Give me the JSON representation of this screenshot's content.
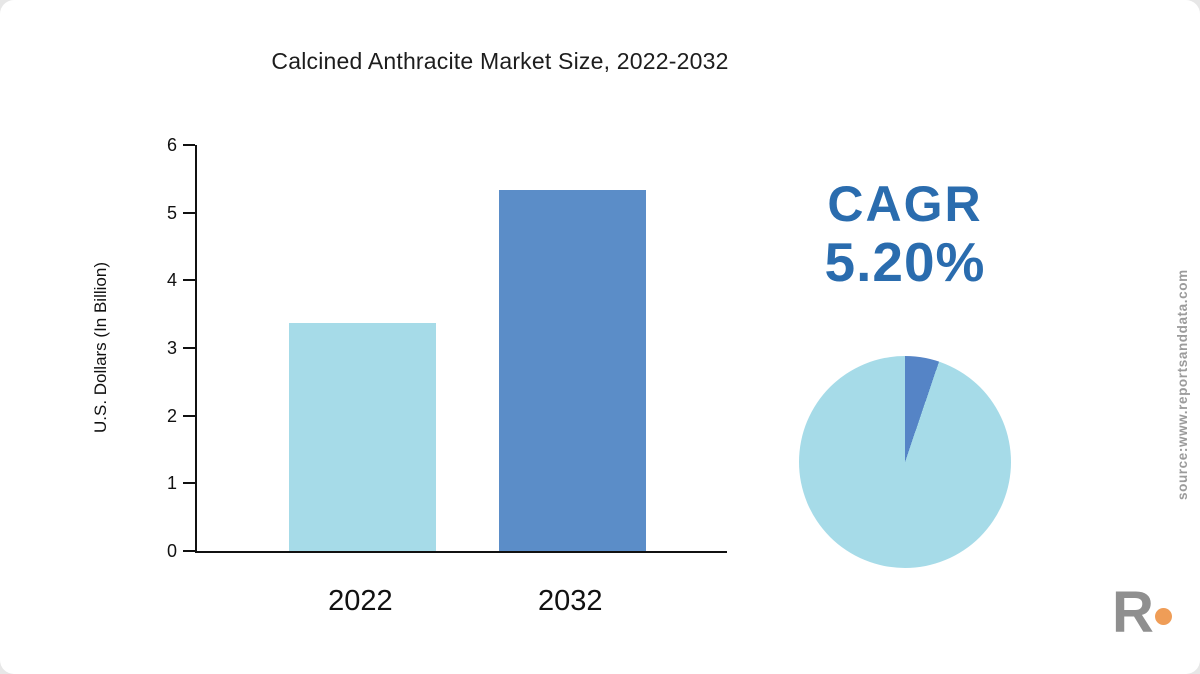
{
  "page": {
    "source": "source:www.reportsanddata.com"
  },
  "chart_data": {
    "type": "bar",
    "title": "Calcined Anthracite Market Size, 2022-2032",
    "categories": [
      "2022",
      "2032"
    ],
    "values": [
      3.37,
      5.33
    ],
    "xlabel": "",
    "ylabel": "U.S. Dollars (In Billion)",
    "ylim": [
      0,
      6
    ],
    "yticks": [
      0,
      1,
      2,
      3,
      4,
      5,
      6
    ],
    "grid": false,
    "legend": "none",
    "bar_colors": [
      "#a6dbe8",
      "#5b8dc8"
    ]
  },
  "cagr": {
    "label": "CAGR",
    "value": "5.20%",
    "percent": 5.2,
    "color": "#2a6cae"
  },
  "pie": {
    "slice_percent": 5.2,
    "main_color": "#a6dbe8",
    "slice_color": "#5584c6"
  },
  "logo": {
    "letter": "R",
    "dot_color": "#ef9d57"
  }
}
